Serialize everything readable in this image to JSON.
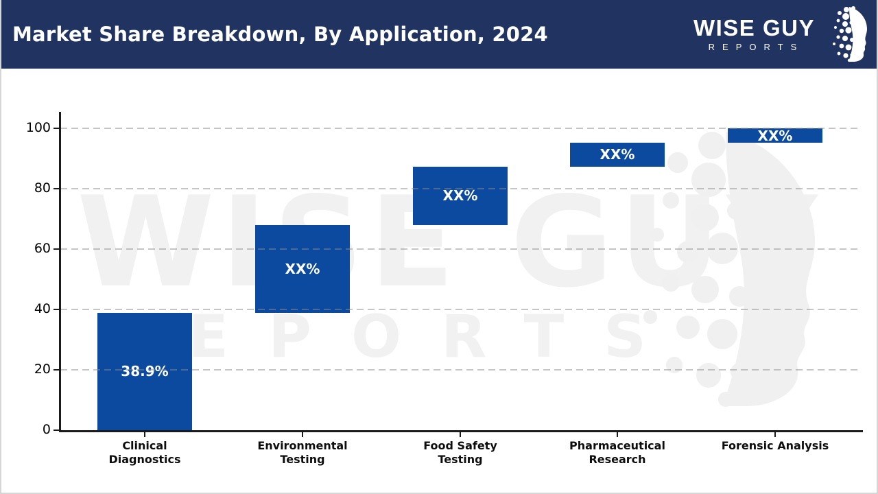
{
  "header": {
    "title": "Market Share Breakdown, By Application, 2024",
    "logo_line1": "WISE GUY",
    "logo_line2": "REPORTS"
  },
  "watermark": {
    "line1": "WISE GUY",
    "line2": "REPORTS"
  },
  "chart_data": {
    "type": "bar",
    "subtype": "waterfall",
    "title": "Market Share Breakdown, By Application, 2024",
    "categories": [
      "Clinical Diagnostics",
      "Environmental Testing",
      "Food Safety Testing",
      "Pharmaceutical Research",
      "Forensic Analysis"
    ],
    "category_label_lines": [
      [
        "Clinical",
        "Diagnostics"
      ],
      [
        "Environmental",
        "Testing"
      ],
      [
        "Food Safety",
        "Testing"
      ],
      [
        "Pharmaceutical",
        "Research"
      ],
      [
        "Forensic Analysis"
      ]
    ],
    "segments": [
      {
        "category": "Clinical Diagnostics",
        "start": 0,
        "end": 38.9,
        "value_label": "38.9%"
      },
      {
        "category": "Environmental Testing",
        "start": 38.9,
        "end": 68,
        "value_label": "XX%"
      },
      {
        "category": "Food Safety Testing",
        "start": 68,
        "end": 87.3,
        "value_label": "XX%"
      },
      {
        "category": "Pharmaceutical Research",
        "start": 87.3,
        "end": 95.2,
        "value_label": "XX%"
      },
      {
        "category": "Forensic Analysis",
        "start": 95.2,
        "end": 100,
        "value_label": "XX%"
      }
    ],
    "xlabel": "",
    "ylabel": "",
    "yticks": [
      0,
      20,
      40,
      60,
      80,
      100
    ],
    "ylim": [
      0,
      105.5
    ],
    "grid": "horizontal-dashed",
    "legend": "none",
    "bar_color": "#0b4a9e",
    "bar_label_color": "#ffffff"
  },
  "colors": {
    "header_bg": "#213461",
    "bar": "#0b4a9e",
    "grid": "#cfcfcf",
    "axis": "#1a1a1a",
    "watermark": "#f1f1f2"
  }
}
